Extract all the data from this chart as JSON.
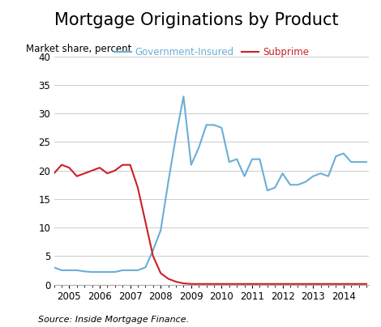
{
  "title": "Mortgage Originations by Product",
  "ylabel": "Market share, percent",
  "source": "Source: Inside Mortgage Finance.",
  "ylim": [
    0,
    40
  ],
  "xlim": [
    2004.5,
    2014.83
  ],
  "yticks": [
    0,
    5,
    10,
    15,
    20,
    25,
    30,
    35,
    40
  ],
  "xticks": [
    2005,
    2006,
    2007,
    2008,
    2009,
    2010,
    2011,
    2012,
    2013,
    2014
  ],
  "gov_color": "#6baed6",
  "sub_color": "#cb2026",
  "gov_label": "Government-Insured",
  "sub_label": "Subprime",
  "gov_x": [
    2004.5,
    2004.75,
    2005.0,
    2005.25,
    2005.5,
    2005.75,
    2006.0,
    2006.25,
    2006.5,
    2006.75,
    2007.0,
    2007.25,
    2007.5,
    2007.75,
    2008.0,
    2008.25,
    2008.5,
    2008.75,
    2009.0,
    2009.25,
    2009.5,
    2009.75,
    2010.0,
    2010.25,
    2010.5,
    2010.75,
    2011.0,
    2011.25,
    2011.5,
    2011.75,
    2012.0,
    2012.25,
    2012.5,
    2012.75,
    2013.0,
    2013.25,
    2013.5,
    2013.75,
    2014.0,
    2014.25,
    2014.5,
    2014.75
  ],
  "gov_y": [
    3.0,
    2.5,
    2.5,
    2.5,
    2.3,
    2.2,
    2.2,
    2.2,
    2.2,
    2.5,
    2.5,
    2.5,
    3.0,
    6.0,
    9.5,
    18.0,
    26.0,
    33.0,
    21.0,
    24.0,
    28.0,
    28.0,
    27.5,
    21.5,
    22.0,
    19.0,
    22.0,
    22.0,
    16.5,
    17.0,
    19.5,
    17.5,
    17.5,
    18.0,
    19.0,
    19.5,
    19.0,
    22.5,
    23.0,
    21.5,
    21.5,
    21.5
  ],
  "sub_x": [
    2004.5,
    2004.75,
    2005.0,
    2005.25,
    2005.5,
    2005.75,
    2006.0,
    2006.25,
    2006.5,
    2006.75,
    2007.0,
    2007.25,
    2007.5,
    2007.75,
    2008.0,
    2008.25,
    2008.5,
    2008.75,
    2009.0,
    2009.25,
    2009.5,
    2009.75,
    2010.0,
    2010.25,
    2010.5,
    2010.75,
    2011.0,
    2011.25,
    2011.5,
    2011.75,
    2012.0,
    2012.25,
    2012.5,
    2012.75,
    2013.0,
    2013.25,
    2013.5,
    2013.75,
    2014.0,
    2014.25,
    2014.5,
    2014.75
  ],
  "sub_y": [
    19.5,
    21.0,
    20.5,
    19.0,
    19.5,
    20.0,
    20.5,
    19.5,
    20.0,
    21.0,
    21.0,
    17.0,
    11.0,
    5.0,
    2.0,
    1.0,
    0.5,
    0.2,
    0.1,
    0.1,
    0.1,
    0.1,
    0.1,
    0.1,
    0.1,
    0.1,
    0.1,
    0.1,
    0.1,
    0.1,
    0.1,
    0.1,
    0.1,
    0.1,
    0.1,
    0.1,
    0.1,
    0.1,
    0.1,
    0.1,
    0.1,
    0.1
  ],
  "background_color": "#ffffff",
  "grid_color": "#cccccc",
  "title_fontsize": 15,
  "label_fontsize": 8.5,
  "tick_fontsize": 8.5,
  "source_fontsize": 8,
  "line_width": 1.5
}
